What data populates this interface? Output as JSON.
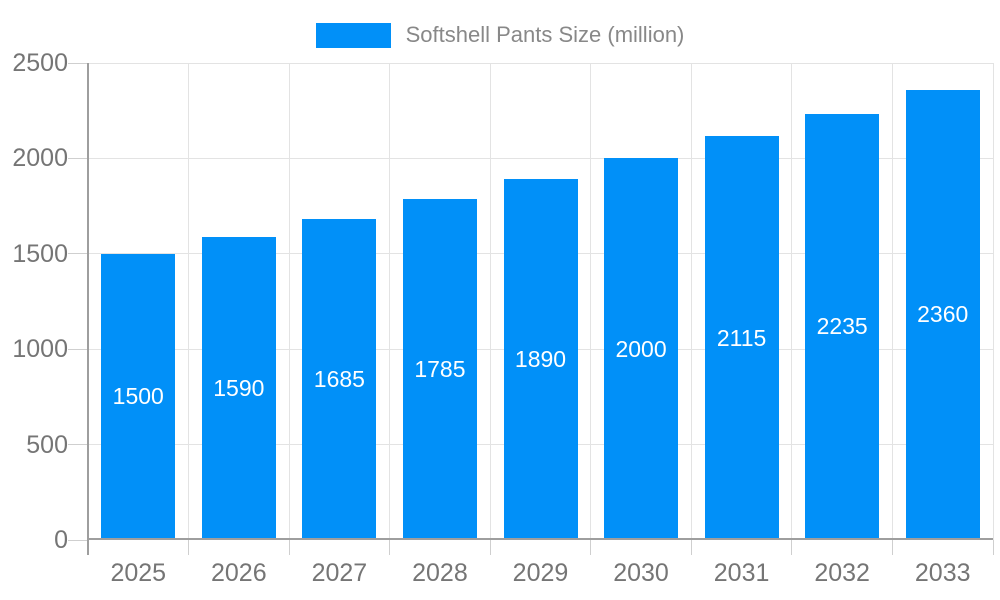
{
  "legend": {
    "label": "Softshell Pants Size (million)"
  },
  "colors": {
    "bar": "#0190f8",
    "grid": "#e3e3e3",
    "tick": "#cfcfcf",
    "axis": "#9e9e9e",
    "tick_text": "#757575",
    "legend_text": "#888888",
    "bar_label": "#ffffff",
    "background": "#ffffff"
  },
  "chart_data": {
    "type": "bar",
    "title": "Softshell Pants Size (million)",
    "categories": [
      "2025",
      "2026",
      "2027",
      "2028",
      "2029",
      "2030",
      "2031",
      "2032",
      "2033"
    ],
    "values": [
      1500,
      1590,
      1685,
      1785,
      1890,
      2000,
      2115,
      2235,
      2360
    ],
    "xlabel": "",
    "ylabel": "",
    "ylim": [
      0,
      2500
    ],
    "yticks": [
      0,
      500,
      1000,
      1500,
      2000,
      2500
    ],
    "grid": true,
    "legend_position": "top",
    "value_labels": "inside-bar-centered"
  }
}
